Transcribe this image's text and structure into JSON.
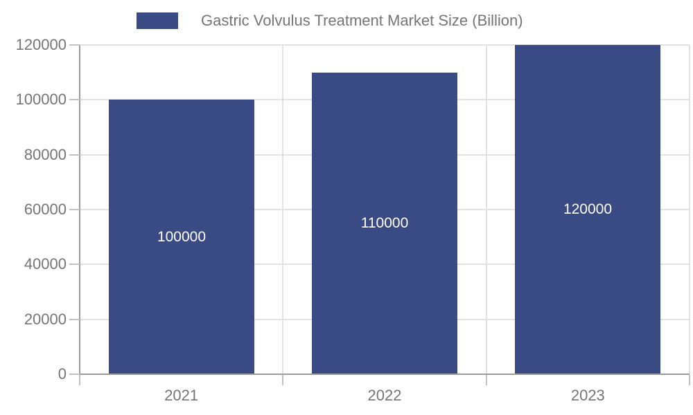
{
  "chart_data": {
    "type": "bar",
    "title": "Gastric Volvulus Treatment Market Size (Billion)",
    "categories": [
      "2021",
      "2022",
      "2023"
    ],
    "values": [
      100000,
      110000,
      120000
    ],
    "bar_value_labels": [
      "100000",
      "110000",
      "120000"
    ],
    "yticks": [
      0,
      20000,
      40000,
      60000,
      80000,
      100000,
      120000
    ],
    "ytick_labels": [
      "0",
      "20000",
      "40000",
      "60000",
      "80000",
      "100000",
      "120000"
    ],
    "ylim": [
      0,
      120000
    ],
    "xlabel": "",
    "ylabel": "",
    "grid": true,
    "legend_position": "top"
  },
  "colors": {
    "bar": "#3a4a85",
    "grid": "#e2e2e2",
    "axis": "#9b9b9b",
    "tick": "#c2c2c2",
    "tick_label": "#757575",
    "bar_label": "#ffffff",
    "background": "#ffffff"
  }
}
